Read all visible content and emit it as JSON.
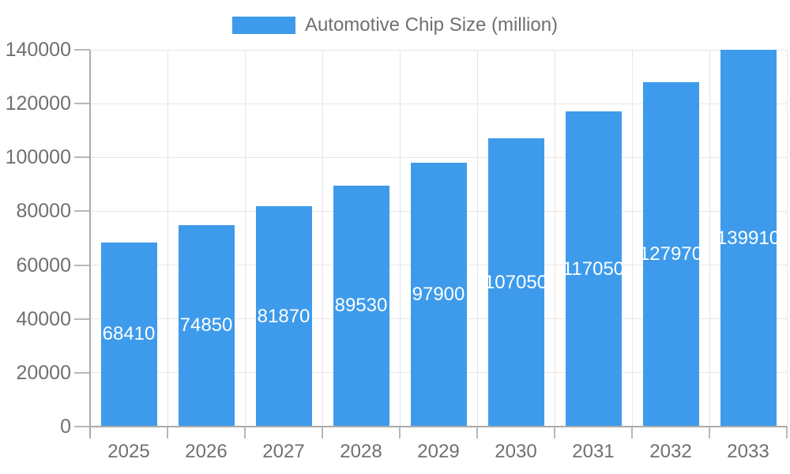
{
  "chart_data": {
    "type": "bar",
    "title": "Automotive Chip Size (million)",
    "legend_label": "Automotive Chip Size (million)",
    "legend_position": "top-center",
    "categories": [
      "2025",
      "2026",
      "2027",
      "2028",
      "2029",
      "2030",
      "2031",
      "2032",
      "2033"
    ],
    "series": [
      {
        "name": "Automotive Chip Size (million)",
        "values": [
          68410,
          74850,
          81870,
          89530,
          97900,
          107050,
          117050,
          127970,
          139910
        ]
      }
    ],
    "xlabel": "",
    "ylabel": "",
    "ylim": [
      0,
      140000
    ],
    "y_ticks": [
      0,
      20000,
      40000,
      60000,
      80000,
      100000,
      120000,
      140000
    ],
    "grid": true,
    "value_labels_position": "inside-center"
  },
  "colors": {
    "bar": "#3E9BEB",
    "grid": "#E6E6E6",
    "axis": "#ABABAB",
    "tick": "#B8B8B8",
    "tick_label": "#707070",
    "legend_text": "#707070",
    "value_label": "#FFFFFF",
    "background": "#FFFFFF"
  }
}
